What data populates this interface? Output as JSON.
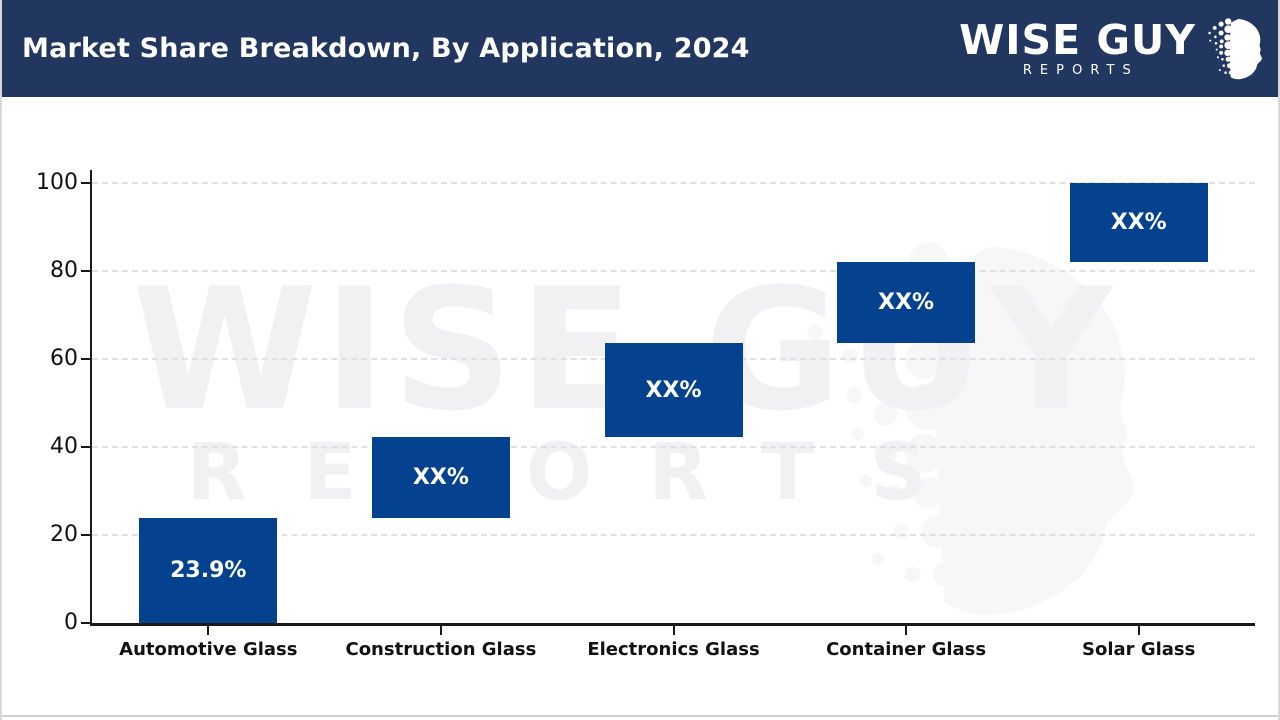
{
  "header": {
    "title": "Market Share Breakdown, By Application, 2024",
    "logo_line1": "WISE GUY",
    "logo_line2": "REPORTS",
    "bg_color": "#21375f"
  },
  "watermark": {
    "line1": "WISE GUY",
    "line2": "REPORTS"
  },
  "chart_data": {
    "type": "bar",
    "subtype": "waterfall-floating-bars",
    "title": "Market Share Breakdown, By Application, 2024",
    "categories": [
      "Automotive Glass",
      "Construction Glass",
      "Electronics Glass",
      "Container Glass",
      "Solar Glass"
    ],
    "segments": [
      {
        "category": "Automotive Glass",
        "start": 0,
        "end": 23.9,
        "label": "23.9%"
      },
      {
        "category": "Construction Glass",
        "start": 23.9,
        "end": 42.2,
        "label": "XX%"
      },
      {
        "category": "Electronics Glass",
        "start": 42.2,
        "end": 63.6,
        "label": "XX%"
      },
      {
        "category": "Container Glass",
        "start": 63.6,
        "end": 82.0,
        "label": "XX%"
      },
      {
        "category": "Solar Glass",
        "start": 82.0,
        "end": 100,
        "label": "XX%"
      }
    ],
    "bar_color": "#04418f",
    "bar_label_color": "#ffffff",
    "xlabel": "",
    "ylabel": "",
    "ylim": [
      0,
      100
    ],
    "yticks": [
      0,
      20,
      40,
      60,
      80,
      100
    ],
    "grid": "dashed-horizontal",
    "legend": "none"
  }
}
